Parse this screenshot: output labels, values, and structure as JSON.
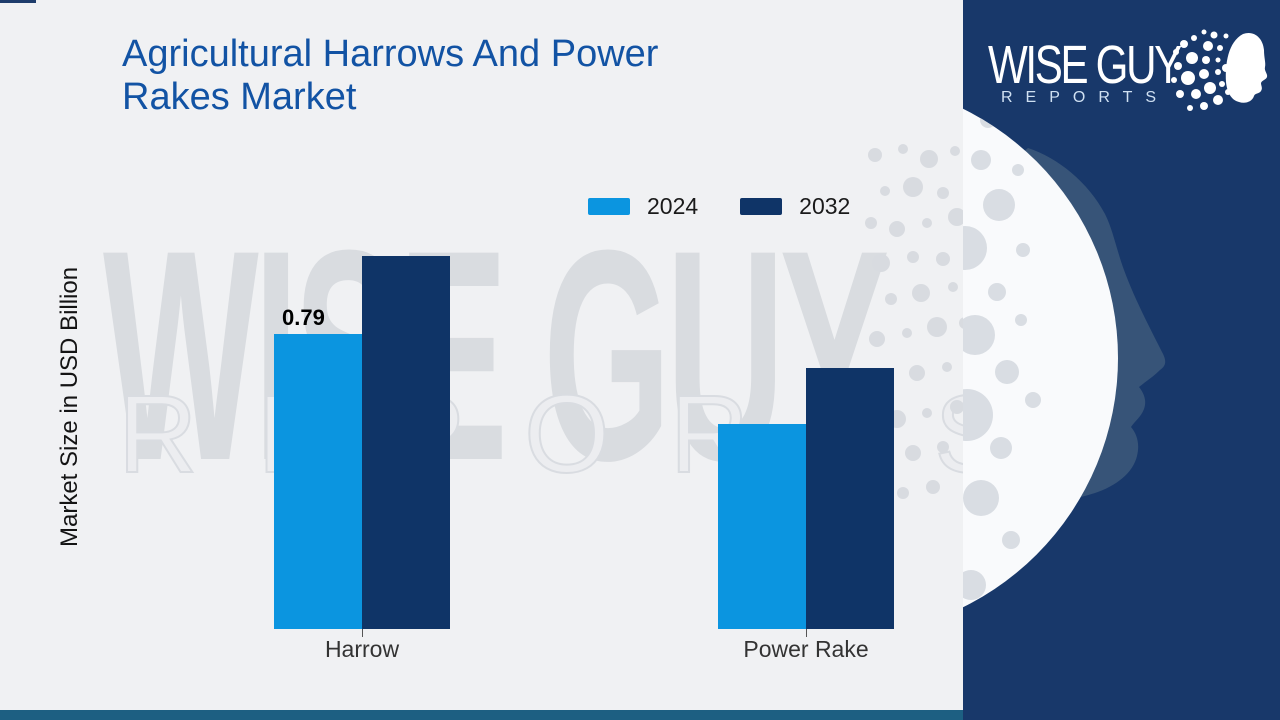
{
  "page": {
    "background": "#f0f1f3"
  },
  "header": {
    "title": "Agricultural Harrows And Power Rakes Market",
    "title_color": "#1253a4"
  },
  "brand": {
    "name_top": "WISE GUY",
    "name_bottom": "REPORTS",
    "panel_color": "#18386a"
  },
  "watermark": {
    "line1": "WISE GUY",
    "line2": "REPORTS"
  },
  "chart_data": {
    "type": "bar",
    "title": "Agricultural Harrows And Power Rakes Market",
    "categories": [
      "Harrow",
      "Power Rake"
    ],
    "series": [
      {
        "name": "2024",
        "color": "#0b95e0",
        "values": [
          0.79,
          0.55
        ],
        "data_labels": [
          "0.79",
          ""
        ]
      },
      {
        "name": "2032",
        "color": "#0f3467",
        "values": [
          1.0,
          0.7
        ],
        "data_labels": [
          "",
          ""
        ]
      }
    ],
    "xlabel": "",
    "ylabel": "Market Size in USD Billion",
    "ylim": [
      0,
      1.05
    ],
    "grid": false,
    "value_axis_visible": false,
    "legend_position": "top"
  },
  "colors": {
    "series_2024": "#0b95e0",
    "series_2032": "#0f3467",
    "title_blue": "#1253a4",
    "panel_navy": "#18386a",
    "face_blue": "#375478",
    "teal_bar": "#1d5f82",
    "watermark_gray": "#d9dce0"
  }
}
